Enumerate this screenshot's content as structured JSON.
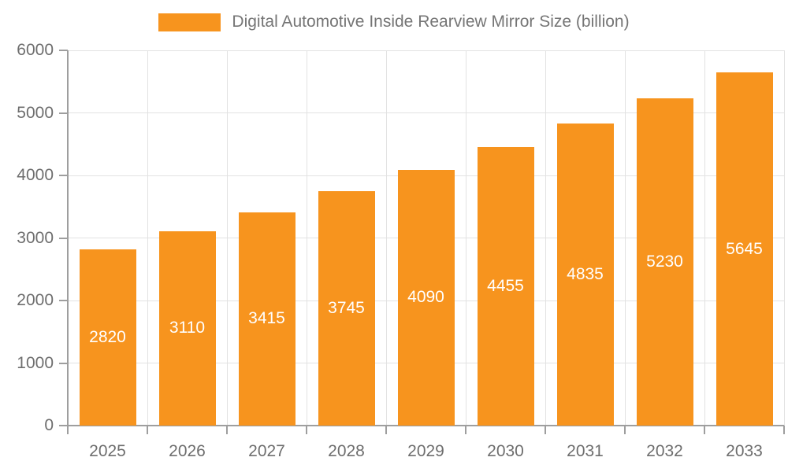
{
  "chart_data": {
    "type": "bar",
    "title": "Digital Automotive Inside Rearview Mirror Size (billion)",
    "categories": [
      "2025",
      "2026",
      "2027",
      "2028",
      "2029",
      "2030",
      "2031",
      "2032",
      "2033"
    ],
    "values": [
      2820,
      3110,
      3415,
      3745,
      4090,
      4455,
      4835,
      5230,
      5645
    ],
    "xlabel": "",
    "ylabel": "",
    "ylim": [
      0,
      6000
    ],
    "y_tick_step": 1000,
    "y_tick_labels": [
      "0",
      "1000",
      "2000",
      "3000",
      "4000",
      "5000",
      "6000"
    ],
    "grid": true,
    "legend_position": "top-center",
    "bar_color": "#F7941E",
    "value_label_color": "#FFFFFF",
    "axis_text_color": "#6E6E6E",
    "legend_text_color": "#757575",
    "grid_color": "#E2E2E2",
    "axis_line_color": "#9E9E9E",
    "background_color": "#FFFFFF"
  }
}
